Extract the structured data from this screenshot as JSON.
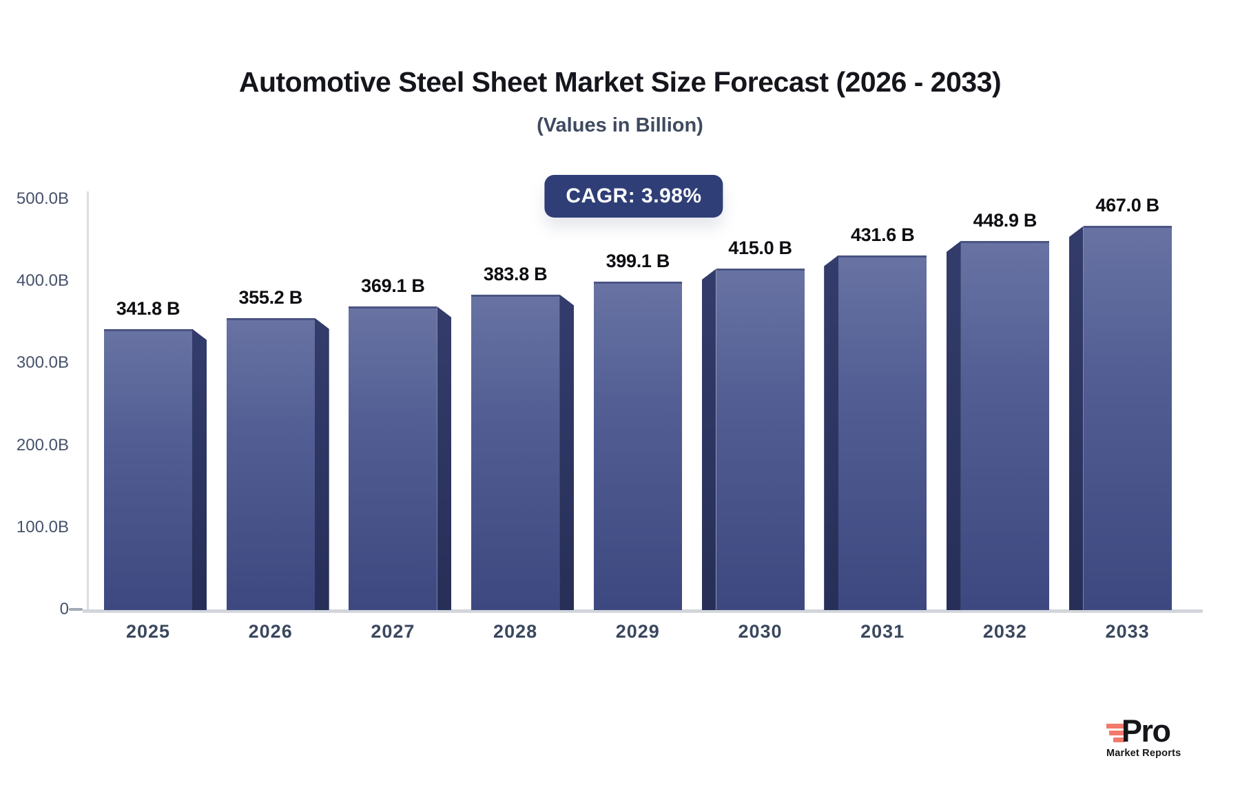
{
  "chart_data": {
    "type": "bar",
    "title": "Automotive Steel Sheet Market Size Forecast (2026 - 2033)",
    "subtitle": "(Values in Billion)",
    "annotation_badge": "CAGR: 3.98%",
    "cagr_percent": 3.98,
    "unit": "B",
    "categories": [
      "2025",
      "2026",
      "2027",
      "2028",
      "2029",
      "2030",
      "2031",
      "2032",
      "2033"
    ],
    "values": [
      341.8,
      355.2,
      369.1,
      383.8,
      399.1,
      415.0,
      431.6,
      448.9,
      467.0
    ],
    "value_labels": [
      "341.8 B",
      "355.2 B",
      "369.1 B",
      "383.8 B",
      "399.1 B",
      "415.0 B",
      "431.6 B",
      "448.9 B",
      "467.0 B"
    ],
    "ylim": [
      0,
      500
    ],
    "yticks": [
      {
        "value": 0,
        "label": "0"
      },
      {
        "value": 100,
        "label": "100.0B"
      },
      {
        "value": 200,
        "label": "200.0B"
      },
      {
        "value": 300,
        "label": "300.0B"
      },
      {
        "value": 400,
        "label": "400.0B"
      },
      {
        "value": 500,
        "label": "500.0B"
      }
    ],
    "grid": false,
    "legend": "none"
  },
  "footer_logo": {
    "brand": "Pro",
    "tagline": "Market Reports"
  },
  "colors": {
    "bar_face_top": "#6873a3",
    "bar_face_bottom": "#3e4880",
    "bar_side_top": "#333c6b",
    "bar_side_bottom": "#272f58",
    "badge_bg": "#2f3e76",
    "badge_text": "#ffffff",
    "axis_line": "#d2d6dc",
    "tick_text": "#46526b",
    "xlabel_text": "#3a475e",
    "value_label_text": "#0d0d12",
    "title_text": "#15161c",
    "subtitle_text": "#3e4a5f",
    "logo_accent": "#f2796c",
    "logo_text": "#16161a"
  }
}
